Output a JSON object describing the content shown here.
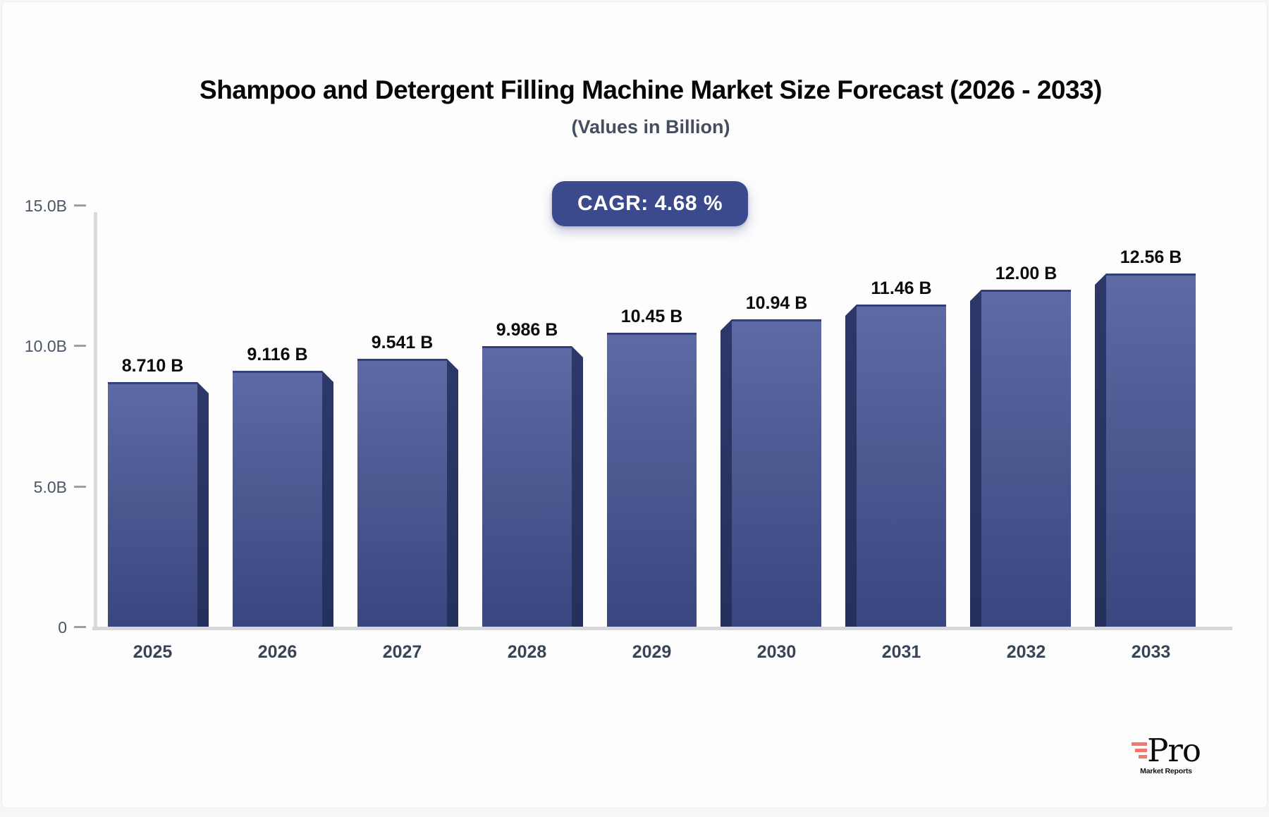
{
  "header": {
    "title": "Shampoo and Detergent Filling Machine Market Size Forecast (2026 - 2033)",
    "subtitle": "(Values in Billion)",
    "cagr_label": "CAGR: 4.68 %"
  },
  "colors": {
    "badge_bg": "#3b4a8c",
    "bar_face_top": "#5e6aa5",
    "bar_face_mid": "#4c5890",
    "bar_face_bottom": "#3a4680",
    "bar_side_top": "#2d3869",
    "bar_side_bottom": "#25305c",
    "bar_top_edge": "#333f78",
    "axis_line": "#d8d9dd",
    "tick_dash": "#9aa0ab",
    "y_label_color": "#4a5568",
    "x_label_color": "#3a4457",
    "logo_accent": "#f5766d"
  },
  "chart_data": {
    "type": "bar",
    "title": "Shampoo and Detergent Filling Machine Market Size Forecast (2026 - 2033)",
    "subtitle": "(Values in Billion)",
    "annotation": "CAGR: 4.68 %",
    "categories": [
      "2025",
      "2026",
      "2027",
      "2028",
      "2029",
      "2030",
      "2031",
      "2032",
      "2033"
    ],
    "values": [
      8.71,
      9.116,
      9.541,
      9.986,
      10.45,
      10.94,
      11.46,
      12.0,
      12.56
    ],
    "value_labels": [
      "8.710 B",
      "9.116 B",
      "9.541 B",
      "9.986 B",
      "10.45 B",
      "10.94 B",
      "11.46 B",
      "12.00 B",
      "12.56 B"
    ],
    "xlabel": "",
    "ylabel": "",
    "ylim": [
      0,
      15
    ],
    "y_ticks": [
      {
        "label": "15.0B",
        "value": 15
      },
      {
        "label": "10.0B",
        "value": 10
      },
      {
        "label": "5.0B",
        "value": 5
      },
      {
        "label": "0",
        "value": 0
      }
    ],
    "grid": false,
    "legend": false,
    "style": "3d-perspective-bars, vanishing point at center column"
  },
  "logo": {
    "name": "Pro",
    "tagline": "Market Reports"
  }
}
